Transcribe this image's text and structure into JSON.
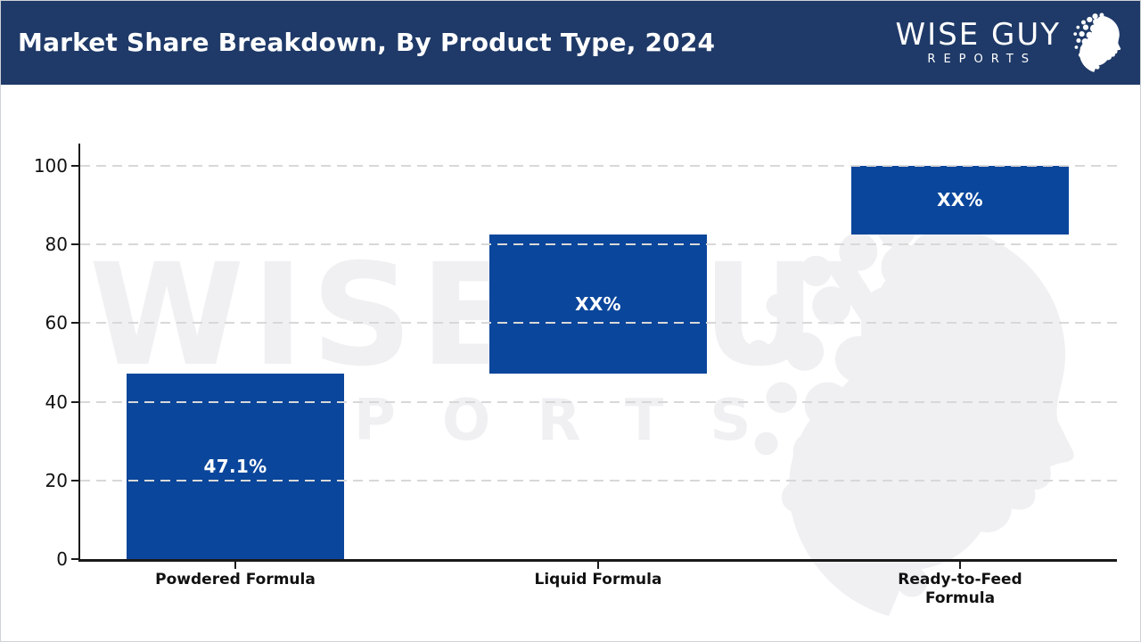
{
  "header": {
    "title": "Market Share Breakdown, By Product Type, 2024",
    "logo": {
      "line1": "WISE GUY",
      "line2": "REPORTS"
    }
  },
  "watermark": {
    "line1": "WISE GUY",
    "line2": "REPORTS"
  },
  "colors": {
    "header_bg": "#1f3a68",
    "bar": "#0a469b",
    "grid": "#d8d8d8",
    "axis": "#1a1a1a",
    "watermark": "#f0f0f3",
    "title_text": "#ffffff",
    "bar_label_text": "#ffffff"
  },
  "chart_data": {
    "type": "bar",
    "subtype": "waterfall-stacked-percent",
    "title": "Market Share Breakdown, By Product Type, 2024",
    "xlabel": "",
    "ylabel": "",
    "ylim": [
      0,
      100
    ],
    "yticks": [
      0,
      20,
      40,
      60,
      80,
      100
    ],
    "grid": "dashed-horizontal",
    "legend": "none",
    "categories": [
      "Powdered Formula",
      "Liquid Formula",
      "Ready-to-Feed Formula"
    ],
    "bars": [
      {
        "category": "Powdered Formula",
        "label": "47.1%",
        "start": 0,
        "end": 47.1,
        "value_pct_est": 47.1
      },
      {
        "category": "Liquid Formula",
        "label": "XX%",
        "start": 47.1,
        "end": 82.6,
        "value_pct_est": 35.5
      },
      {
        "category": "Ready-to-Feed Formula",
        "label": "XX%",
        "start": 82.6,
        "end": 100,
        "value_pct_est": 17.4
      }
    ]
  }
}
